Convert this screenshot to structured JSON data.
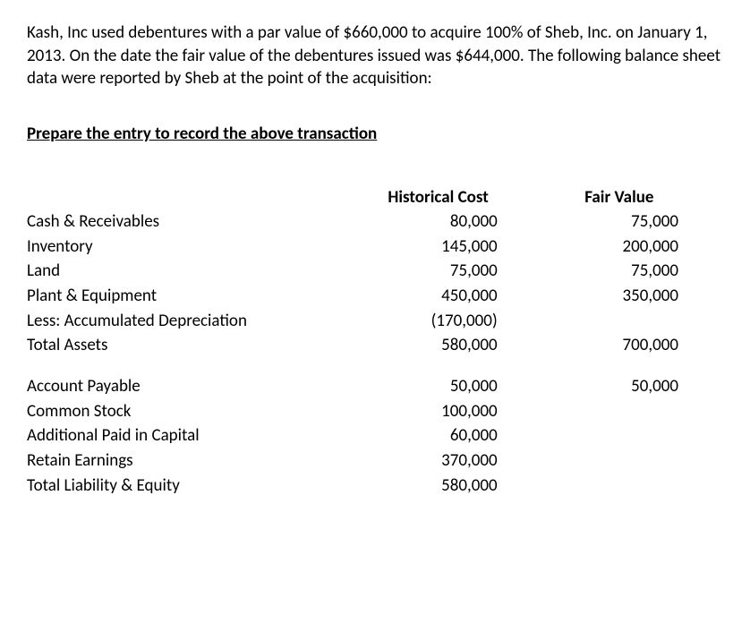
{
  "intro": "Kash, Inc used debentures with a par value of $660,000 to acquire 100% of Sheb, Inc. on January 1, 2013. On the date the fair value of the debentures issued was $644,000. The following balance sheet data were reported by Sheb at the point of the acquisition:",
  "prompt": "Prepare the entry to record the above transaction",
  "table": {
    "headers": {
      "hist": "Historical Cost",
      "fair": "Fair Value"
    },
    "rows": [
      {
        "label": "Cash & Receivables",
        "hist": "80,000",
        "fair": "75,000"
      },
      {
        "label": "Inventory",
        "hist": "145,000",
        "fair": "200,000"
      },
      {
        "label": "Land",
        "hist": "75,000",
        "fair": "75,000"
      },
      {
        "label": "Plant & Equipment",
        "hist": "450,000",
        "fair": "350,000"
      },
      {
        "label": "Less: Accumulated Depreciation",
        "hist": "(170,000)",
        "fair": ""
      },
      {
        "label": "Total Assets",
        "hist": "580,000",
        "fair": "700,000"
      }
    ],
    "rows2": [
      {
        "label": "Account Payable",
        "hist": "50,000",
        "fair": "50,000"
      },
      {
        "label": "Common Stock",
        "hist": "100,000",
        "fair": ""
      },
      {
        "label": "Additional Paid in Capital",
        "hist": "60,000",
        "fair": ""
      },
      {
        "label": "Retain Earnings",
        "hist": "370,000",
        "fair": ""
      },
      {
        "label": "Total Liability & Equity",
        "hist": "580,000",
        "fair": ""
      }
    ]
  }
}
